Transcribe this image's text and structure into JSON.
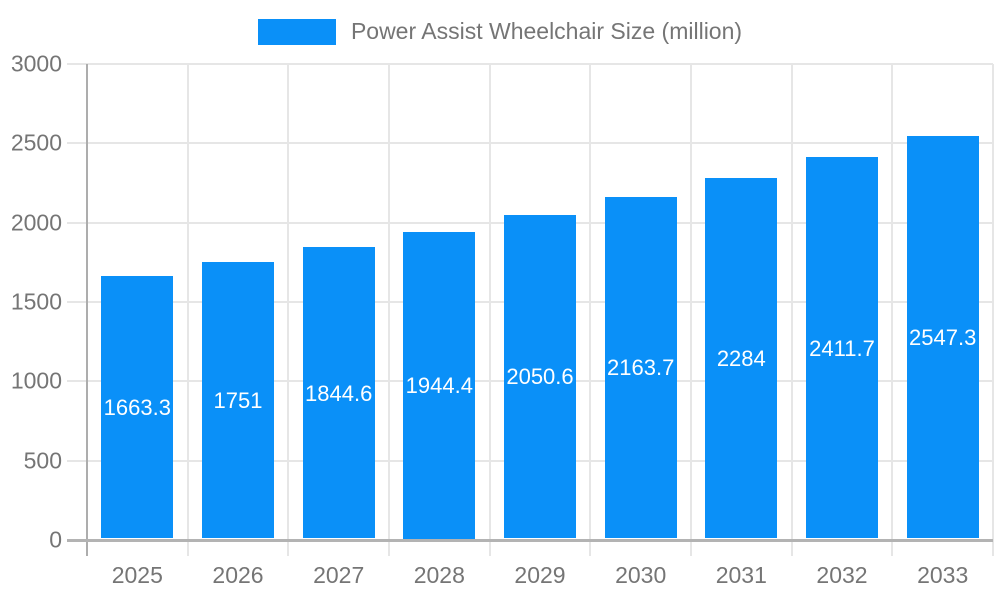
{
  "legend": {
    "label": "Power Assist Wheelchair Size (million)"
  },
  "chart_data": {
    "type": "bar",
    "title": "Power Assist Wheelchair Size (million)",
    "categories": [
      "2025",
      "2026",
      "2027",
      "2028",
      "2029",
      "2030",
      "2031",
      "2032",
      "2033"
    ],
    "values": [
      1663.3,
      1751,
      1844.6,
      1944.4,
      2050.6,
      2163.7,
      2284,
      2411.7,
      2547.3
    ],
    "value_labels": [
      "1663.3",
      "1751",
      "1844.6",
      "1944.4",
      "2050.6",
      "2163.7",
      "2284",
      "2411.7",
      "2547.3"
    ],
    "xlabel": "",
    "ylabel": "",
    "ylim": [
      0,
      3000
    ],
    "ytick_step": 500,
    "ytick_labels": [
      "0",
      "500",
      "1000",
      "1500",
      "2000",
      "2500",
      "3000"
    ],
    "grid": true,
    "legend_position": "top-center",
    "colors": {
      "bar": "#0a90f8",
      "value_label": "#ffffff",
      "axis_text": "#757575",
      "gridline": "#e6e6e6",
      "axis_line": "#adadad"
    }
  }
}
